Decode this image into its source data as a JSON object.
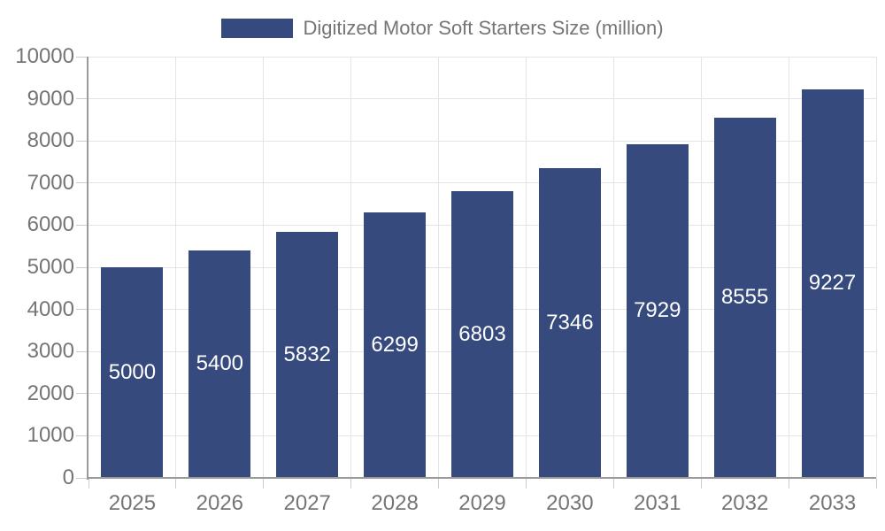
{
  "legend": {
    "label": "Digitized Motor Soft Starters Size (million)"
  },
  "colors": {
    "bar": "#364A7E",
    "grid": "#e3e3e8",
    "axis": "#9a9a9a",
    "tick_mark": "#cccccc",
    "tick_text": "#757575",
    "legend_text": "#757575",
    "bar_label_text": "#ffffff",
    "background": "#ffffff"
  },
  "chart_data": {
    "type": "bar",
    "title": "Digitized Motor Soft Starters Size (million)",
    "categories": [
      "2025",
      "2026",
      "2027",
      "2028",
      "2029",
      "2030",
      "2031",
      "2032",
      "2033"
    ],
    "values": [
      5000,
      5400,
      5832,
      6299,
      6803,
      7346,
      7929,
      8555,
      9227
    ],
    "xlabel": "",
    "ylabel": "",
    "ylim": [
      0,
      10000
    ],
    "ytick_interval": 1000,
    "grid": true,
    "legend_position": "top-center",
    "bar_label_position": "inside-center"
  }
}
